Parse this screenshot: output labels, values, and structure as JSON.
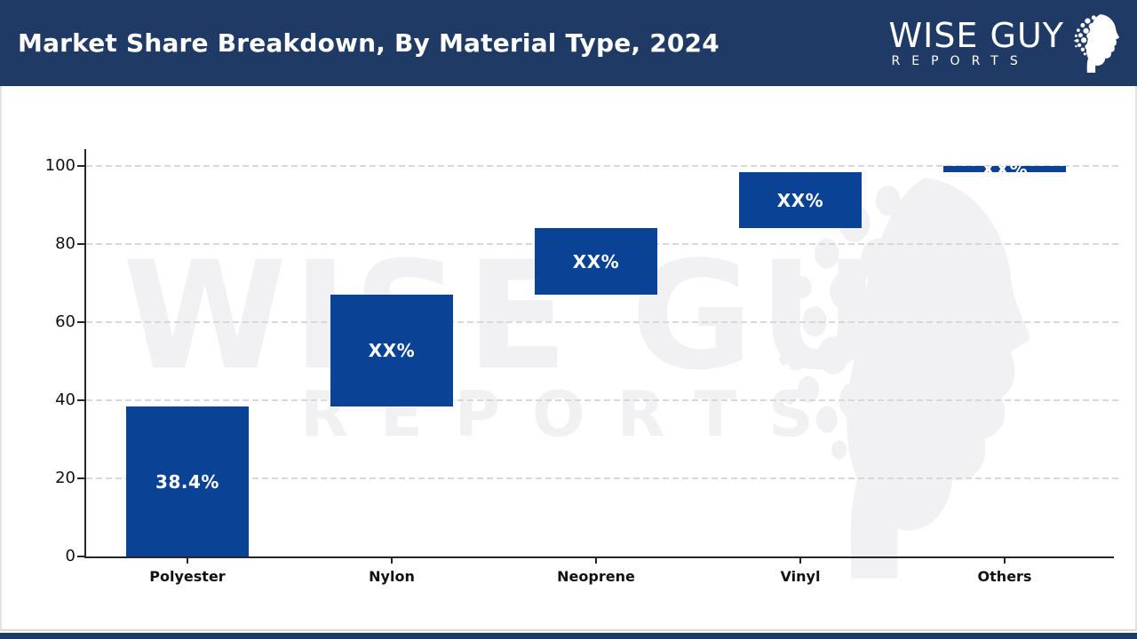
{
  "page": {
    "background": "#ffffff",
    "border_color": "#d9d9db"
  },
  "header": {
    "title": "Market Share Breakdown, By Material Type, 2024",
    "background": "#203a66",
    "text_color": "#ffffff",
    "logo": {
      "line1": "WISE GUY",
      "line2": "REPORTS",
      "head_icon": "dotted-head-profile-icon"
    }
  },
  "watermark": {
    "line1": "WISE GUY",
    "line2": "REPORTS"
  },
  "footer": {
    "background": "#203a66"
  },
  "chart_data": {
    "type": "bar",
    "subtype": "waterfall",
    "title": "Market Share Breakdown, By Material Type, 2024",
    "categories": [
      "Polyester",
      "Nylon",
      "Neoprene",
      "Vinyl",
      "Others"
    ],
    "segments": [
      {
        "category": "Polyester",
        "start": 0,
        "end": 38.4,
        "label": "38.4%"
      },
      {
        "category": "Nylon",
        "start": 38.4,
        "end": 67,
        "label": "XX%"
      },
      {
        "category": "Neoprene",
        "start": 67,
        "end": 84,
        "label": "XX%"
      },
      {
        "category": "Vinyl",
        "start": 84,
        "end": 98.4,
        "label": "XX%"
      },
      {
        "category": "Others",
        "start": 98.4,
        "end": 100,
        "label": "XX%"
      }
    ],
    "xlabel": "",
    "ylabel": "",
    "ylim": [
      0,
      100
    ],
    "yticks": [
      0,
      20,
      40,
      60,
      80,
      100
    ],
    "grid": "dashed-horizontal",
    "legend": "none",
    "bar_color": "#0a4296",
    "bar_label_color": "#ffffff",
    "axis_color": "#262626",
    "gridline_color": "#d8d8d8"
  }
}
